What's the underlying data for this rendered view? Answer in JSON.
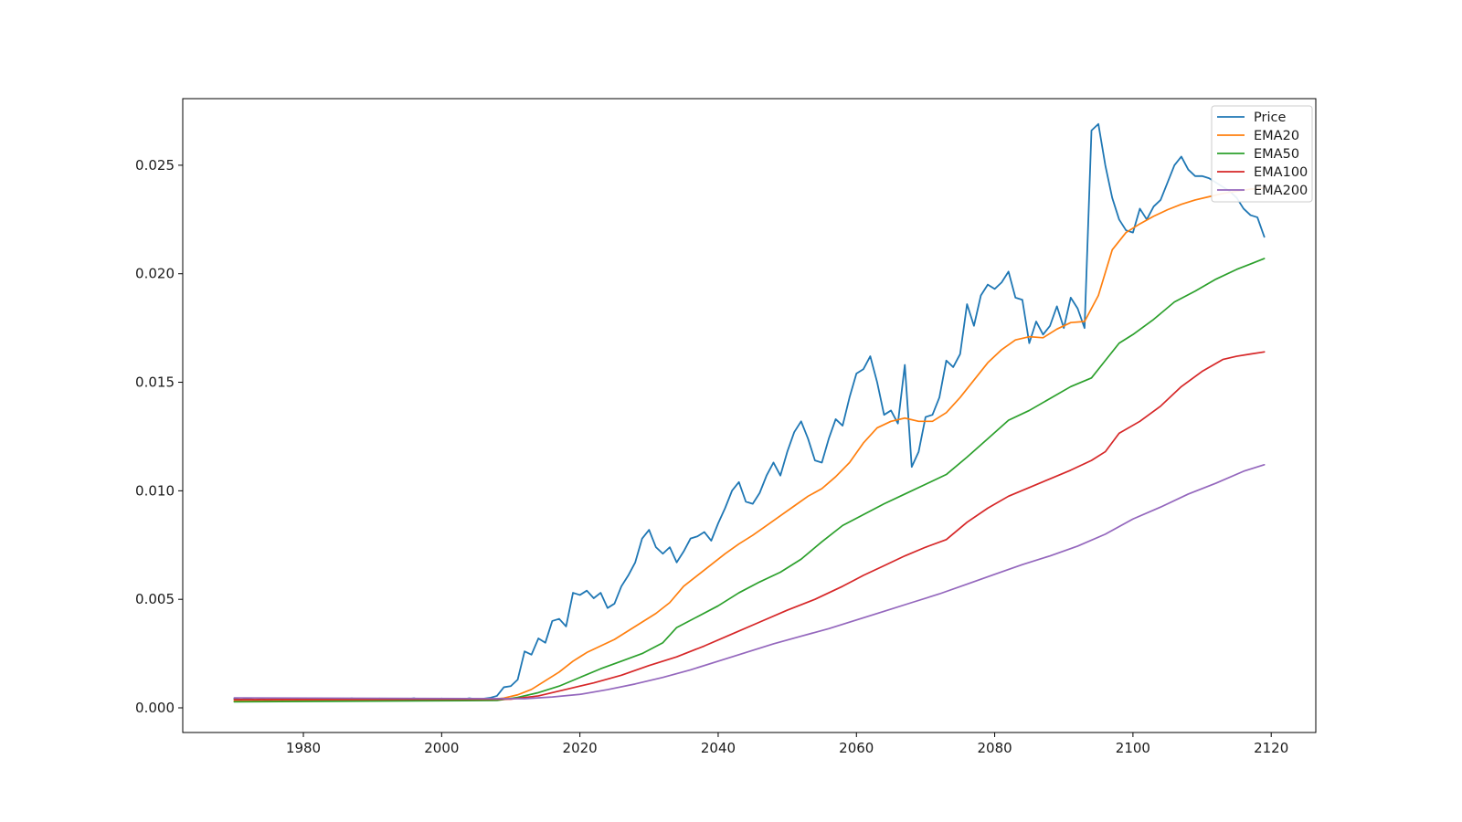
{
  "figure": {
    "background": "#ffffff"
  },
  "axes": {
    "xlim": [
      1962.55,
      2126.45
    ],
    "ylim": [
      -0.001136,
      0.028068
    ],
    "x_ticks": [
      1980,
      2000,
      2020,
      2040,
      2060,
      2080,
      2100,
      2120
    ],
    "y_ticks": [
      0,
      0.005,
      0.01,
      0.015,
      0.02,
      0.025
    ],
    "y_tick_labels": [
      "0.000",
      "0.005",
      "0.010",
      "0.015",
      "0.020",
      "0.025"
    ],
    "spine_color": "#000000",
    "tick_label_color": "#1a1a1a",
    "grid": false
  },
  "legend": {
    "position": "upper right",
    "border_color": "#cccccc",
    "background": "#ffffff",
    "entries": [
      "Price",
      "EMA20",
      "EMA50",
      "EMA100",
      "EMA200"
    ]
  },
  "chart_data": {
    "type": "line",
    "title": "",
    "xlabel": "",
    "ylabel": "",
    "x_range": [
      1970,
      2119
    ],
    "series": [
      {
        "name": "Price",
        "color": "#1f77b4",
        "x0": 1970,
        "dx": 1,
        "values": [
          0.00042,
          0.00038,
          0.00044,
          0.00036,
          0.0004,
          0.00034,
          0.00042,
          0.00038,
          0.00044,
          0.00037,
          0.00041,
          0.00035,
          0.00043,
          0.00039,
          0.00036,
          0.00042,
          0.00038,
          0.00044,
          0.00037,
          0.00041,
          0.00036,
          0.00043,
          0.00038,
          0.00042,
          0.00036,
          0.0004,
          0.00044,
          0.00037,
          0.00041,
          0.00038,
          0.00043,
          0.00037,
          0.00042,
          0.00039,
          0.00044,
          0.0004,
          0.00042,
          0.00046,
          0.00055,
          0.00095,
          0.001,
          0.0013,
          0.0026,
          0.00245,
          0.0032,
          0.003,
          0.004,
          0.0041,
          0.00375,
          0.0053,
          0.0052,
          0.0054,
          0.00505,
          0.0053,
          0.0046,
          0.0048,
          0.0056,
          0.0061,
          0.0067,
          0.0078,
          0.0082,
          0.0074,
          0.0071,
          0.0074,
          0.0067,
          0.0072,
          0.0078,
          0.0079,
          0.0081,
          0.0077,
          0.0085,
          0.0092,
          0.01,
          0.0104,
          0.0095,
          0.0094,
          0.0099,
          0.0107,
          0.0113,
          0.0107,
          0.0118,
          0.0127,
          0.0132,
          0.0124,
          0.0114,
          0.0113,
          0.0124,
          0.0133,
          0.013,
          0.0143,
          0.0154,
          0.0156,
          0.0162,
          0.015,
          0.0135,
          0.0137,
          0.0131,
          0.0158,
          0.0111,
          0.0118,
          0.0134,
          0.0135,
          0.0143,
          0.016,
          0.0157,
          0.0163,
          0.0186,
          0.0176,
          0.019,
          0.0195,
          0.0193,
          0.0196,
          0.0201,
          0.0189,
          0.0188,
          0.0168,
          0.0178,
          0.0172,
          0.0176,
          0.0185,
          0.0175,
          0.0189,
          0.0184,
          0.0175,
          0.0266,
          0.0269,
          0.025,
          0.0235,
          0.0225,
          0.022,
          0.0219,
          0.023,
          0.0225,
          0.0231,
          0.0234,
          0.0242,
          0.025,
          0.0254,
          0.0248,
          0.0245,
          0.0245,
          0.0244,
          0.0242,
          0.024,
          0.0238,
          0.0235,
          0.023,
          0.0227,
          0.0226,
          0.0217
        ]
      },
      {
        "name": "EMA20",
        "color": "#ff7f0e",
        "x": [
          1970,
          2006,
          2009,
          2011,
          2013,
          2015,
          2017,
          2019,
          2021,
          2023,
          2025,
          2027,
          2029,
          2031,
          2033,
          2035,
          2037,
          2039,
          2041,
          2043,
          2045,
          2047,
          2049,
          2051,
          2053,
          2055,
          2057,
          2059,
          2061,
          2063,
          2065,
          2067,
          2069,
          2071,
          2073,
          2075,
          2077,
          2079,
          2081,
          2083,
          2085,
          2087,
          2089,
          2091,
          2093,
          2095,
          2097,
          2099,
          2101,
          2103,
          2105,
          2107,
          2109,
          2111,
          2113,
          2115,
          2117,
          2119
        ],
        "values": [
          0.00031,
          0.00035,
          0.00045,
          0.0006,
          0.00085,
          0.00125,
          0.00165,
          0.00215,
          0.00255,
          0.00285,
          0.00315,
          0.00355,
          0.00395,
          0.00435,
          0.00485,
          0.0056,
          0.0061,
          0.0066,
          0.0071,
          0.00755,
          0.00795,
          0.0084,
          0.00885,
          0.0093,
          0.00975,
          0.0101,
          0.01065,
          0.0113,
          0.0122,
          0.0129,
          0.0132,
          0.01335,
          0.0132,
          0.0132,
          0.0136,
          0.0143,
          0.0151,
          0.0159,
          0.0165,
          0.01695,
          0.0171,
          0.01705,
          0.01745,
          0.01775,
          0.0178,
          0.019,
          0.0211,
          0.0219,
          0.0223,
          0.02265,
          0.02295,
          0.0232,
          0.0234,
          0.02355,
          0.0237,
          0.0238,
          0.0239,
          0.02395
        ]
      },
      {
        "name": "EMA50",
        "color": "#2ca02c",
        "x": [
          1970,
          2008,
          2011,
          2014,
          2017,
          2020,
          2023,
          2026,
          2029,
          2032,
          2034,
          2037,
          2040,
          2043,
          2046,
          2049,
          2052,
          2055,
          2058,
          2061,
          2064,
          2067,
          2070,
          2073,
          2076,
          2079,
          2082,
          2085,
          2088,
          2091,
          2094,
          2096,
          2098,
          2100,
          2103,
          2106,
          2109,
          2112,
          2115,
          2117,
          2119
        ],
        "values": [
          0.00028,
          0.00034,
          0.00048,
          0.0007,
          0.001,
          0.0014,
          0.0018,
          0.00215,
          0.0025,
          0.003,
          0.0037,
          0.0042,
          0.0047,
          0.0053,
          0.0058,
          0.00625,
          0.00685,
          0.00765,
          0.0084,
          0.0089,
          0.0094,
          0.00985,
          0.0103,
          0.01075,
          0.01155,
          0.0124,
          0.01325,
          0.0137,
          0.01425,
          0.0148,
          0.0152,
          0.016,
          0.0168,
          0.0172,
          0.0179,
          0.0187,
          0.0192,
          0.01975,
          0.0202,
          0.02045,
          0.0207
        ]
      },
      {
        "name": "EMA100",
        "color": "#d62728",
        "x": [
          1970,
          2010,
          2014,
          2018,
          2022,
          2026,
          2030,
          2034,
          2038,
          2042,
          2046,
          2050,
          2054,
          2058,
          2061,
          2064,
          2067,
          2070,
          2073,
          2076,
          2079,
          2082,
          2085,
          2088,
          2091,
          2094,
          2096,
          2098,
          2101,
          2104,
          2107,
          2110,
          2113,
          2115,
          2117,
          2119
        ],
        "values": [
          0.00038,
          0.0004,
          0.00055,
          0.00085,
          0.00115,
          0.0015,
          0.00195,
          0.00235,
          0.00285,
          0.0034,
          0.00395,
          0.0045,
          0.005,
          0.0056,
          0.0061,
          0.00655,
          0.007,
          0.0074,
          0.00775,
          0.00855,
          0.0092,
          0.00975,
          0.01015,
          0.01055,
          0.01095,
          0.0114,
          0.0118,
          0.01265,
          0.0132,
          0.0139,
          0.0148,
          0.0155,
          0.01605,
          0.0162,
          0.0163,
          0.0164
        ]
      },
      {
        "name": "EMA200",
        "color": "#9467bd",
        "x": [
          1970,
          2012,
          2016,
          2020,
          2024,
          2028,
          2032,
          2036,
          2040,
          2044,
          2048,
          2052,
          2056,
          2060,
          2064,
          2068,
          2072,
          2076,
          2080,
          2084,
          2088,
          2092,
          2096,
          2100,
          2104,
          2108,
          2112,
          2116,
          2119
        ],
        "values": [
          0.00046,
          0.00042,
          0.0005,
          0.00062,
          0.00084,
          0.0011,
          0.0014,
          0.00175,
          0.00215,
          0.00255,
          0.00295,
          0.0033,
          0.00365,
          0.00405,
          0.00445,
          0.00485,
          0.00525,
          0.0057,
          0.00615,
          0.0066,
          0.007,
          0.00745,
          0.008,
          0.0087,
          0.00925,
          0.00985,
          0.01035,
          0.0109,
          0.0112
        ]
      }
    ]
  }
}
